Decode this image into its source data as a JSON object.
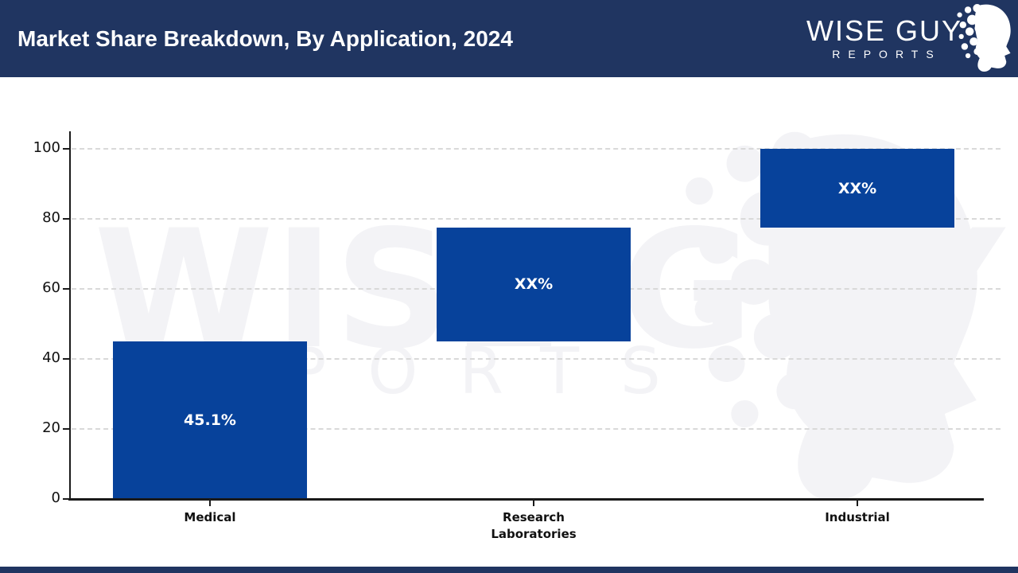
{
  "header": {
    "title": "Market Share Breakdown, By Application, 2024",
    "logo": {
      "wordmark": "WISE GUY",
      "subtext": "REPORTS"
    }
  },
  "watermark": {
    "wordmark": "WISE GUY",
    "subtext": "REPORTS"
  },
  "footer": {},
  "colors": {
    "header_navy": "#203561",
    "bar_blue": "#07429B",
    "watermark_gray": "#f3f3f6",
    "gridline_gray": "#d9d9d9",
    "axis_black": "#1a1a1a",
    "bar_label_white": "#ffffff"
  },
  "chart_data": {
    "type": "bar",
    "variant": "stacked-waterfall-segments",
    "title": "Market Share Breakdown, By Application, 2024",
    "categories": [
      "Medical",
      "Research Laboratories",
      "Industrial"
    ],
    "segments": [
      {
        "category": "Medical",
        "start": 0,
        "end": 45.1,
        "value_label": "45.1%"
      },
      {
        "category": "Research Laboratories",
        "start": 45.1,
        "end": 77.4,
        "value_label": "XX%"
      },
      {
        "category": "Industrial",
        "start": 77.4,
        "end": 100,
        "value_label": "XX%"
      }
    ],
    "yticks": [
      0,
      20,
      40,
      60,
      80,
      100
    ],
    "ylim": [
      0,
      105
    ],
    "xlabel": "",
    "ylabel": "",
    "grid": "horizontal-dashed",
    "legend": "none",
    "bar_color": "#07429B",
    "notes": "Middle and right segments show placeholder labels XX%; their extents (45.1-77.4, 77.4-100) are read from the y-axis."
  }
}
